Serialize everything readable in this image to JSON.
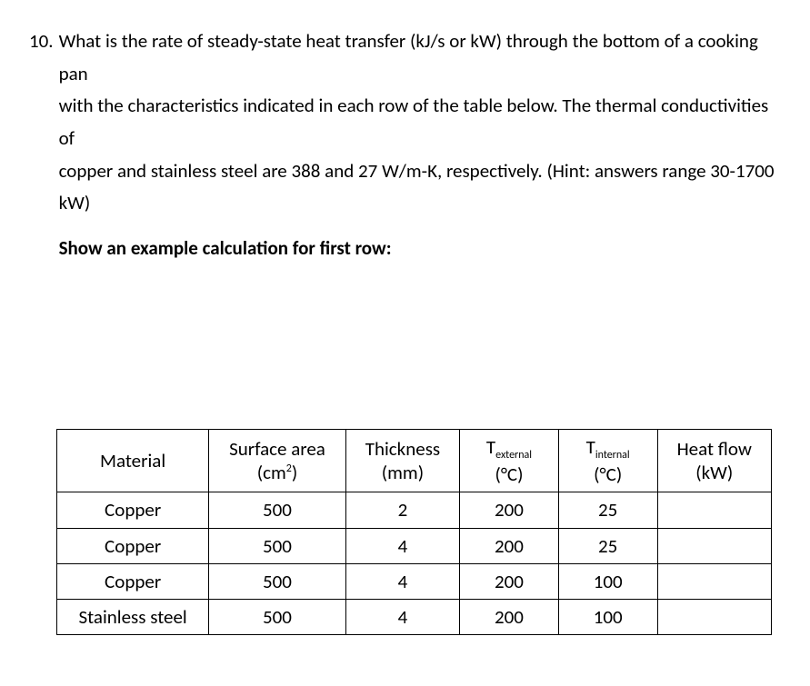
{
  "question": {
    "number": "10.",
    "text_line1": "What is the rate of steady-state heat transfer (kJ/s or kW) through the bottom of a cooking pan",
    "text_line2": "with the characteristics indicated in each row of the table below. The thermal conductivities of",
    "text_line3": "copper and stainless steel are 388 and 27 W/m-K, respectively.  (Hint: answers range 30-1700 kW)",
    "show_calc": "Show an example calculation for first row:"
  },
  "table": {
    "headers": {
      "material": "Material",
      "surface_area_l1": "Surface area",
      "surface_area_l2_prefix": "(cm",
      "surface_area_l2_sup": "2",
      "surface_area_l2_suffix": ")",
      "thickness_l1": "Thickness",
      "thickness_l2": "(mm)",
      "t_ext_prefix": "T",
      "t_ext_sub": "external",
      "t_ext_l2": "(°C)",
      "t_int_prefix": "T",
      "t_int_sub": "internal",
      "t_int_l2": "(°C)",
      "heat_l1": "Heat flow",
      "heat_l2": "(kW)"
    },
    "rows": [
      {
        "material": "Copper",
        "area": "500",
        "thickness": "2",
        "t_ext": "200",
        "t_int": "25",
        "heat": ""
      },
      {
        "material": "Copper",
        "area": "500",
        "thickness": "4",
        "t_ext": "200",
        "t_int": "25",
        "heat": ""
      },
      {
        "material": "Copper",
        "area": "500",
        "thickness": "4",
        "t_ext": "200",
        "t_int": "100",
        "heat": ""
      },
      {
        "material": "Stainless steel",
        "area": "500",
        "thickness": "4",
        "t_ext": "200",
        "t_int": "100",
        "heat": ""
      }
    ]
  }
}
